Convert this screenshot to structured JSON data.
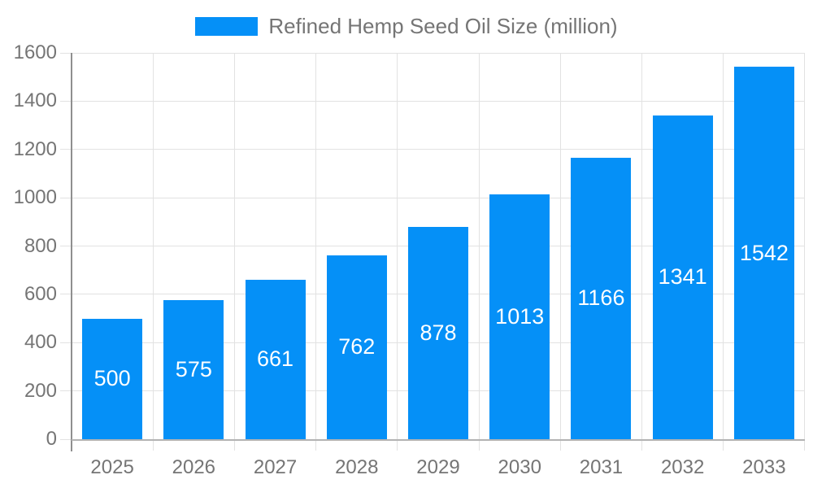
{
  "legend": {
    "label": "Refined Hemp Seed Oil Size (million)"
  },
  "chart_data": {
    "type": "bar",
    "title": "",
    "series_name": "Refined Hemp Seed Oil Size (million)",
    "categories": [
      "2025",
      "2026",
      "2027",
      "2028",
      "2029",
      "2030",
      "2031",
      "2032",
      "2033"
    ],
    "values": [
      500,
      575,
      661,
      762,
      878,
      1013,
      1166,
      1341,
      1542
    ],
    "value_labels_shown": true,
    "xlabel": "",
    "ylabel": "",
    "ylim": [
      0,
      1600
    ],
    "yticks": [
      0,
      200,
      400,
      600,
      800,
      1000,
      1200,
      1400,
      1600
    ],
    "grid": true,
    "legend_position": "top-center",
    "colors": {
      "bar": "#0590F7",
      "value_label": "#FFFFFF",
      "axis_text": "#757575",
      "gridline": "#E2E2E2",
      "y_axis_line": "#8F8F8F",
      "x_axis_line": "#B3B3B3",
      "background": "#FFFFFF"
    }
  }
}
